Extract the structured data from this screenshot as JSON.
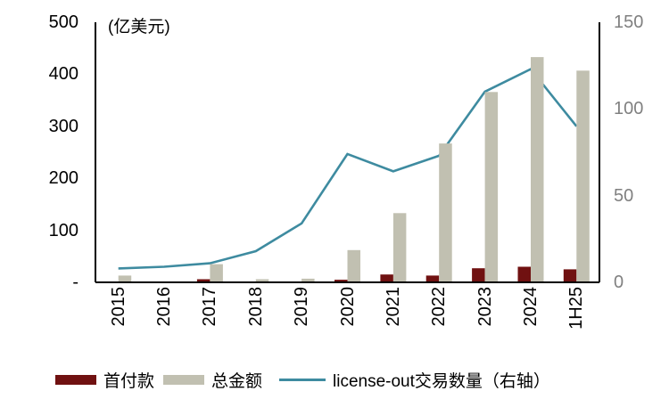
{
  "chart_data": {
    "type": "bar",
    "subtype": "grouped-bars-with-line-combo",
    "title": "",
    "unit_label": "(亿美元)",
    "categories": [
      "2015",
      "2016",
      "2017",
      "2018",
      "2019",
      "2020",
      "2021",
      "2022",
      "2023",
      "2024",
      "1H25"
    ],
    "series": [
      {
        "name": "首付款",
        "type": "bar",
        "axis": "left",
        "color": "#701111",
        "values": [
          0,
          0,
          6,
          0,
          0,
          5,
          15,
          13,
          27,
          30,
          25
        ]
      },
      {
        "name": "总金额",
        "type": "bar",
        "axis": "left",
        "color": "#C1C0B1",
        "values": [
          13,
          1,
          35,
          6,
          7,
          62,
          133,
          267,
          366,
          433,
          407
        ]
      },
      {
        "name": "license-out交易数量（右轴）",
        "type": "line",
        "axis": "right",
        "color": "#3E8BA0",
        "values": [
          8,
          9,
          11,
          18,
          34,
          74,
          64,
          73,
          110,
          123,
          90
        ]
      }
    ],
    "left_axis": {
      "range": [
        0,
        500
      ],
      "tick_values": [
        500,
        400,
        300,
        200,
        100,
        0
      ],
      "tick_labels": [
        "500",
        "400",
        "300",
        "200",
        "100",
        "-"
      ],
      "label_color": "#000000"
    },
    "right_axis": {
      "range": [
        0,
        150
      ],
      "tick_values": [
        150,
        100,
        50,
        0
      ],
      "tick_labels": [
        "150",
        "100",
        "50",
        "0"
      ],
      "label_color": "#808080"
    },
    "grid": "off",
    "legend_position": "bottom",
    "axis_line_color": "#000000"
  }
}
